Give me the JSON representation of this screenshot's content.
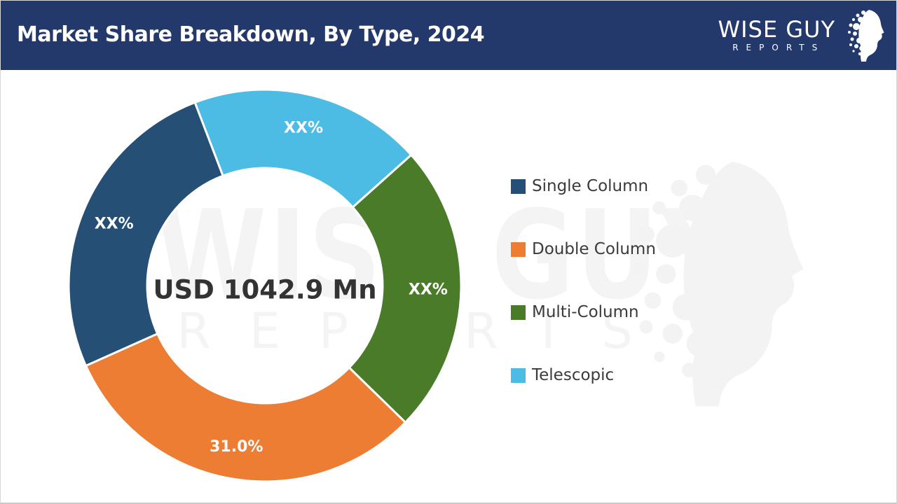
{
  "header": {
    "title": "Market Share Breakdown, By Type, 2024",
    "bg_color": "#24396B",
    "logo": {
      "name": "WISE GUY",
      "sub": "REPORTS"
    }
  },
  "watermark": {
    "line1": "WISE GUY",
    "line2": "REPORTS"
  },
  "chart_data": {
    "type": "pie",
    "subtype": "donut",
    "title": "Market Share Breakdown, By Type, 2024",
    "center_label": "USD 1042.9 Mn",
    "outer_radius_px": 280,
    "inner_radius_px": 168,
    "label_radius_px": 233,
    "start_angle_clock_deg": -20.9,
    "direction": "clockwise drawing order is reverse of legend order",
    "legend_position": "right",
    "segments": [
      {
        "label": "Single Column",
        "value_pct": 25.9,
        "display": "XX%",
        "color": "#254F74"
      },
      {
        "label": "Double Column",
        "value_pct": 31.0,
        "display": "31.0%",
        "color": "#EC7D33"
      },
      {
        "label": "Multi-Column",
        "value_pct": 23.9,
        "display": "XX%",
        "color": "#4A7B28"
      },
      {
        "label": "Telescopic",
        "value_pct": 19.2,
        "display": "XX%",
        "color": "#4DBCE5"
      }
    ]
  },
  "colors": {
    "header_bg": "#24396B",
    "watermark": "#f4f4f4",
    "legend_text": "#3b3b3b",
    "center_text": "#333333",
    "separator": "#ffffff"
  }
}
